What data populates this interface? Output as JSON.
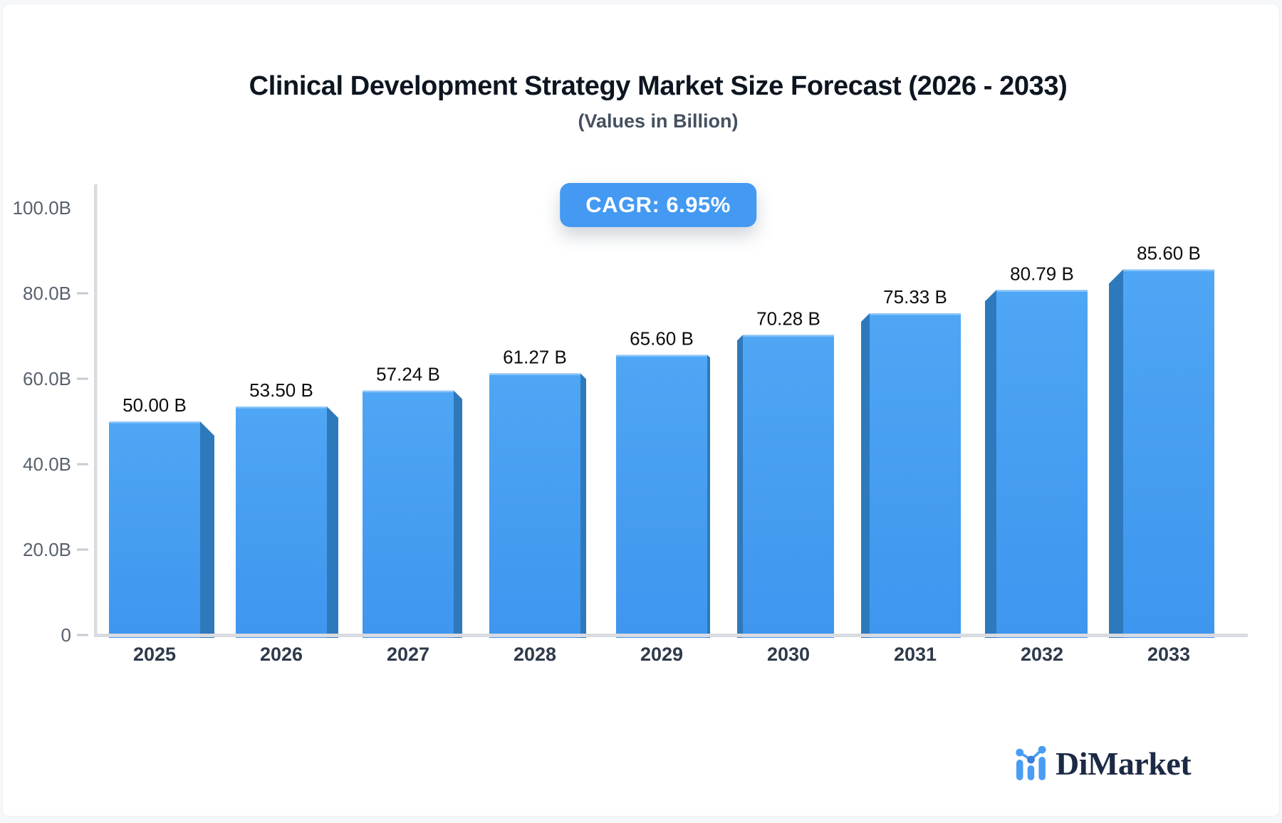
{
  "header": {
    "title": "Clinical Development Strategy Market Size Forecast (2026 - 2033)",
    "subtitle": "(Values in Billion)",
    "cagr_label": "CAGR: 6.95%"
  },
  "chart_data": {
    "type": "bar",
    "title": "Clinical Development Strategy Market Size Forecast (2026 - 2033)",
    "subtitle": "(Values in Billion)",
    "categories": [
      "2025",
      "2026",
      "2027",
      "2028",
      "2029",
      "2030",
      "2031",
      "2032",
      "2033"
    ],
    "values": [
      50.0,
      53.5,
      57.24,
      61.27,
      65.6,
      70.28,
      75.33,
      80.79,
      85.6
    ],
    "value_labels": [
      "50.00 B",
      "53.50 B",
      "57.24 B",
      "61.27 B",
      "65.60 B",
      "70.28 B",
      "75.33 B",
      "80.79 B",
      "85.60 B"
    ],
    "units": "Billion",
    "cagr": "6.95%",
    "xlabel": "",
    "ylabel": "",
    "ylim": [
      0,
      100
    ],
    "grid": false,
    "legend": false,
    "style": "3d-perspective-bars",
    "y_axis": {
      "ticks": [
        {
          "label": "100.0B",
          "value": 100
        },
        {
          "label": "80.0B",
          "value": 80
        },
        {
          "label": "60.0B",
          "value": 60
        },
        {
          "label": "40.0B",
          "value": 40
        },
        {
          "label": "20.0B",
          "value": 20
        },
        {
          "label": "0",
          "value": 0
        }
      ]
    }
  },
  "colors": {
    "bar_face_top": "#4fa6f4",
    "bar_face_bottom": "#3e96ef",
    "bar_side": "#2e79bb",
    "badge_bg": "#4499f2",
    "axis_line": "#d9dbe1",
    "tick_dash": "#c7cbd3",
    "y_label_text": "#59616f",
    "x_label_text": "#2f3a4a",
    "value_label_text": "#0b0d10",
    "logo_navy": "#1c2a45",
    "logo_blue": "#4a9df3"
  },
  "logo": {
    "text": "DiMarket",
    "icon": "combo-chart-icon"
  }
}
